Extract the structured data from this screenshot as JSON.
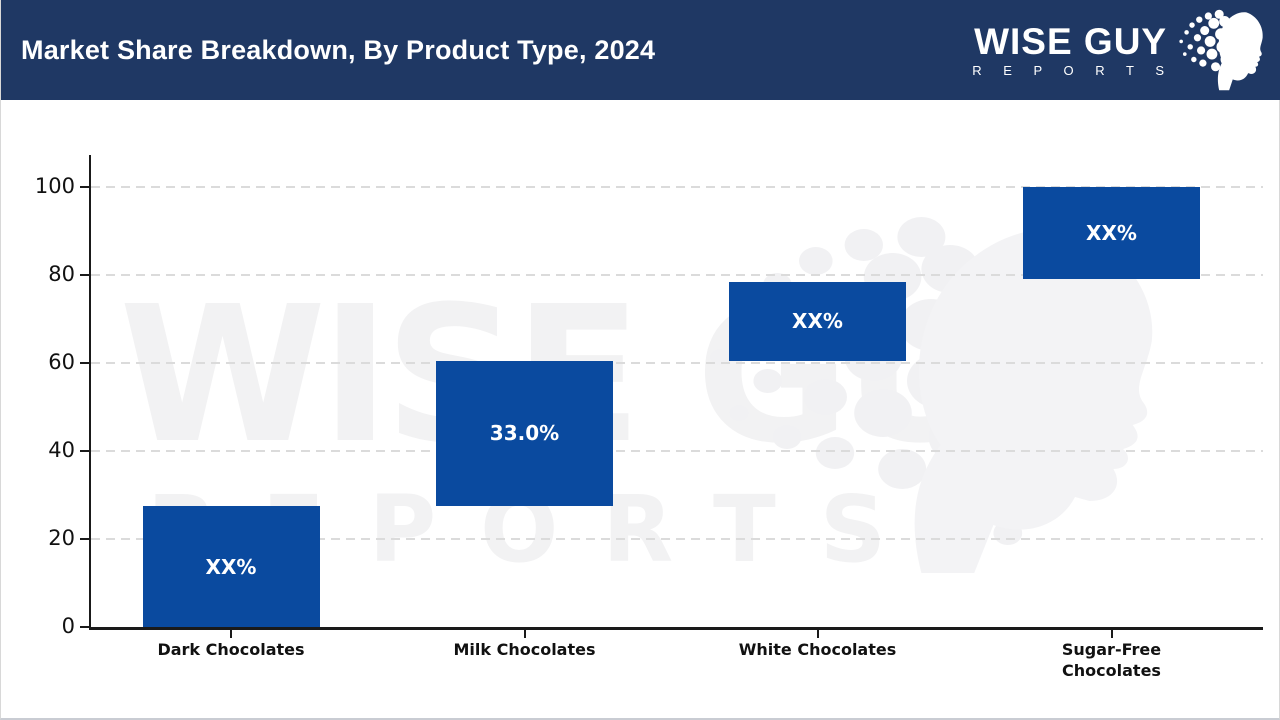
{
  "header": {
    "title": "Market Share Breakdown, By Product Type, 2024",
    "logo": {
      "line1": "WISE GUY",
      "line2": "R E P O R T S"
    },
    "bg_color": "#1f3864"
  },
  "watermark": {
    "line1": "WISE GUY",
    "line2": "REPORTS"
  },
  "chart_data": {
    "type": "bar",
    "subtype": "floating-waterfall",
    "title": "Market Share Breakdown, By Product Type, 2024",
    "categories": [
      "Dark Chocolates",
      "Milk Chocolates",
      "White Chocolates",
      "Sugar-Free\nChocolates"
    ],
    "bars": [
      {
        "category": "Dark Chocolates",
        "start": 0,
        "end": 27.5,
        "label": "XX%"
      },
      {
        "category": "Milk Chocolates",
        "start": 27.5,
        "end": 60.5,
        "label": "33.0%"
      },
      {
        "category": "White Chocolates",
        "start": 60.5,
        "end": 78.5,
        "label": "XX%"
      },
      {
        "category": "Sugar-Free Chocolates",
        "start": 79,
        "end": 100,
        "label": "XX%"
      }
    ],
    "y_ticks": [
      0,
      20,
      40,
      60,
      80,
      100
    ],
    "ylim": [
      0,
      100
    ],
    "xlabel": "",
    "ylabel": "",
    "grid": "dashed-horizontal",
    "legend": "none",
    "colors": {
      "bar": "#0a4a9f",
      "bar_label": "#ffffff",
      "header_bg": "#1f3864",
      "grid": "#dbdbdb",
      "axis": "#1a1a1a",
      "watermark": "#f2f2f3"
    }
  }
}
